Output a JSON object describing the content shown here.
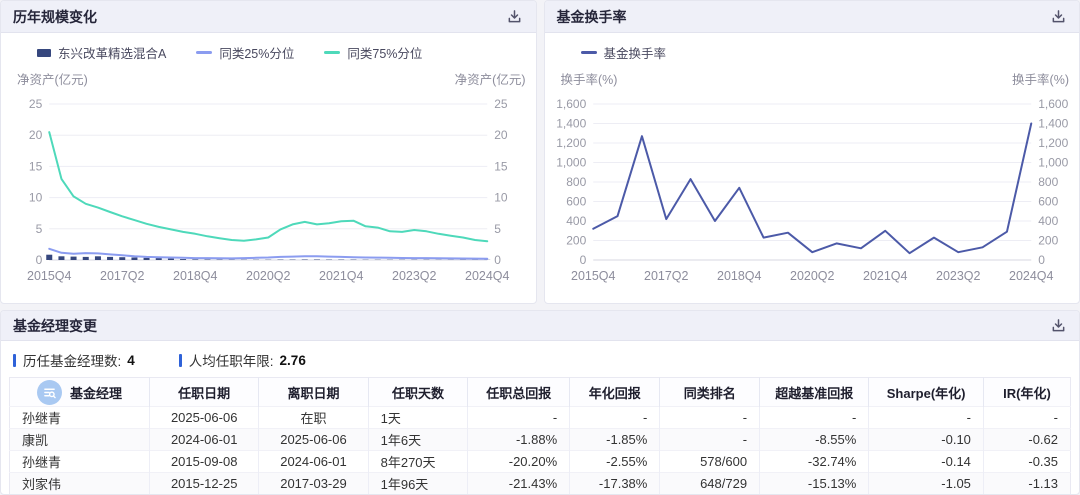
{
  "panels": [
    {
      "title": "历年规模变化"
    },
    {
      "title": "基金换手率"
    },
    {
      "title": "基金经理变更"
    }
  ],
  "icons": {
    "panel_action": "download-icon",
    "table_badge": "list-search-icon"
  },
  "colors": {
    "fund_bar": "#36477e",
    "pct25_line": "#8b9cf0",
    "pct75_line": "#4ed9ba",
    "turnover_line": "#4c5aa8",
    "stat_marker": "#2f62d8",
    "negative_green": "#2fa878",
    "header_band": "#eff0f8"
  },
  "chart_data": [
    {
      "id": "scale",
      "type": "bar",
      "title": "历年规模变化",
      "ylabel_left": "净资产(亿元)",
      "ylabel_right": "净资产(亿元)",
      "ylim": [
        0,
        25
      ],
      "yticks": [
        0,
        5,
        10,
        15,
        20,
        25
      ],
      "ytick_labels": [
        "0",
        "5",
        "10",
        "15",
        "20",
        "25"
      ],
      "grid": true,
      "legend_position": "top-left",
      "categories": [
        "2015Q4",
        "2016Q1",
        "2016Q2",
        "2016Q3",
        "2016Q4",
        "2017Q1",
        "2017Q2",
        "2017Q3",
        "2017Q4",
        "2018Q1",
        "2018Q2",
        "2018Q3",
        "2018Q4",
        "2019Q1",
        "2019Q2",
        "2019Q3",
        "2019Q4",
        "2020Q1",
        "2020Q2",
        "2020Q3",
        "2020Q4",
        "2021Q1",
        "2021Q2",
        "2021Q3",
        "2021Q4",
        "2022Q1",
        "2022Q2",
        "2022Q3",
        "2022Q4",
        "2023Q1",
        "2023Q2",
        "2023Q3",
        "2023Q4",
        "2024Q1",
        "2024Q2",
        "2024Q3",
        "2024Q4"
      ],
      "x_ticks": [
        {
          "i": 0,
          "label": "2015Q4"
        },
        {
          "i": 6,
          "label": "2017Q2"
        },
        {
          "i": 12,
          "label": "2018Q4"
        },
        {
          "i": 18,
          "label": "2020Q2"
        },
        {
          "i": 24,
          "label": "2021Q4"
        },
        {
          "i": 30,
          "label": "2023Q2"
        },
        {
          "i": 36,
          "label": "2024Q4"
        }
      ],
      "series": [
        {
          "name": "东兴改革精选混合A",
          "type": "bar",
          "color": "#36477e",
          "values": [
            0.85,
            0.6,
            0.55,
            0.5,
            0.6,
            0.5,
            0.45,
            0.4,
            0.35,
            0.3,
            0.22,
            0.15,
            0.1,
            0.08,
            0.06,
            0.05,
            0.05,
            0.05,
            0.05,
            0.06,
            0.07,
            0.08,
            0.08,
            0.07,
            0.06,
            0.06,
            0.05,
            0.05,
            0.05,
            0.05,
            0.05,
            0.05,
            0.04,
            0.04,
            0.04,
            0.03,
            0.03
          ]
        },
        {
          "name": "同类25%分位",
          "type": "line",
          "color": "#8b9cf0",
          "values": [
            1.8,
            1.15,
            1.0,
            1.1,
            1.05,
            0.9,
            0.75,
            0.6,
            0.5,
            0.45,
            0.4,
            0.35,
            0.3,
            0.3,
            0.28,
            0.25,
            0.3,
            0.35,
            0.4,
            0.5,
            0.55,
            0.6,
            0.6,
            0.55,
            0.5,
            0.45,
            0.4,
            0.38,
            0.35,
            0.32,
            0.3,
            0.3,
            0.28,
            0.26,
            0.24,
            0.22,
            0.2
          ]
        },
        {
          "name": "同类75%分位",
          "type": "line",
          "color": "#4ed9ba",
          "values": [
            20.5,
            13.0,
            10.2,
            9.0,
            8.4,
            7.7,
            7.0,
            6.4,
            5.8,
            5.3,
            4.9,
            4.5,
            4.2,
            3.8,
            3.5,
            3.2,
            3.1,
            3.3,
            3.6,
            4.9,
            5.7,
            6.1,
            5.7,
            5.9,
            6.2,
            6.3,
            5.4,
            5.2,
            4.6,
            4.5,
            4.8,
            4.6,
            4.2,
            3.9,
            3.6,
            3.2,
            3.0
          ]
        }
      ]
    },
    {
      "id": "turnover",
      "type": "line",
      "title": "基金换手率",
      "ylabel_left": "换手率(%)",
      "ylabel_right": "换手率(%)",
      "ylim": [
        0,
        1600
      ],
      "yticks": [
        0,
        200,
        400,
        600,
        800,
        1000,
        1200,
        1400,
        1600
      ],
      "ytick_labels": [
        "0",
        "200",
        "400",
        "600",
        "800",
        "1,000",
        "1,200",
        "1,400",
        "1,600"
      ],
      "grid": true,
      "legend_position": "top-left",
      "categories": [
        "2015Q4",
        "2016Q2",
        "2016Q4",
        "2017Q2",
        "2017Q4",
        "2018Q2",
        "2018Q4",
        "2019Q2",
        "2019Q4",
        "2020Q2",
        "2020Q4",
        "2021Q2",
        "2021Q4",
        "2022Q2",
        "2022Q4",
        "2023Q2",
        "2023Q4",
        "2024Q2",
        "2024Q4"
      ],
      "x_ticks": [
        {
          "i": 0,
          "label": "2015Q4"
        },
        {
          "i": 3,
          "label": "2017Q2"
        },
        {
          "i": 6,
          "label": "2018Q4"
        },
        {
          "i": 9,
          "label": "2020Q2"
        },
        {
          "i": 12,
          "label": "2021Q4"
        },
        {
          "i": 15,
          "label": "2023Q2"
        },
        {
          "i": 18,
          "label": "2024Q4"
        }
      ],
      "series": [
        {
          "name": "基金换手率",
          "type": "line",
          "color": "#4c5aa8",
          "values": [
            320,
            450,
            1270,
            420,
            830,
            400,
            740,
            230,
            280,
            80,
            170,
            120,
            300,
            70,
            230,
            80,
            130,
            290,
            1400
          ]
        }
      ]
    }
  ],
  "manager": {
    "stats": [
      {
        "label": "历任基金经理数:",
        "value": "4"
      },
      {
        "label": "人均任职年限:",
        "value": "2.76"
      }
    ],
    "table": {
      "columns": [
        {
          "label": "基金经理",
          "align": "left",
          "w": "13.2%"
        },
        {
          "label": "任职日期",
          "align": "center",
          "w": "10.3%"
        },
        {
          "label": "离职日期",
          "align": "center",
          "w": "10.3%"
        },
        {
          "label": "任职天数",
          "align": "left",
          "w": "9.4%"
        },
        {
          "label": "任职总回报",
          "align": "right",
          "w": "9.6%"
        },
        {
          "label": "年化回报",
          "align": "right",
          "w": "8.5%"
        },
        {
          "label": "同类排名",
          "align": "right",
          "w": "9.4%"
        },
        {
          "label": "超越基准回报",
          "align": "right",
          "w": "10.3%"
        },
        {
          "label": "Sharpe(年化)",
          "align": "right",
          "w": "10.8%"
        },
        {
          "label": "IR(年化)",
          "align": "right",
          "w": "8.2%"
        }
      ],
      "rows": [
        [
          {
            "t": "孙继青"
          },
          {
            "t": "2025-06-06"
          },
          {
            "t": "在职"
          },
          {
            "t": "1天"
          },
          {
            "t": "-",
            "c": "dash"
          },
          {
            "t": "-",
            "c": "dash"
          },
          {
            "t": "-",
            "c": "dash"
          },
          {
            "t": "-",
            "c": "dash"
          },
          {
            "t": "-",
            "c": "dash"
          },
          {
            "t": "-",
            "c": "dash"
          }
        ],
        [
          {
            "t": "康凯"
          },
          {
            "t": "2024-06-01"
          },
          {
            "t": "2025-06-06"
          },
          {
            "t": "1年6天"
          },
          {
            "t": "-1.88%",
            "c": "green"
          },
          {
            "t": "-1.85%",
            "c": "green"
          },
          {
            "t": "-",
            "c": "dash"
          },
          {
            "t": "-8.55%",
            "c": "green"
          },
          {
            "t": "-0.10"
          },
          {
            "t": "-0.62"
          }
        ],
        [
          {
            "t": "孙继青"
          },
          {
            "t": "2015-09-08"
          },
          {
            "t": "2024-06-01"
          },
          {
            "t": "8年270天"
          },
          {
            "t": "-20.20%",
            "c": "green"
          },
          {
            "t": "-2.55%",
            "c": "green"
          },
          {
            "t": "578/600"
          },
          {
            "t": "-32.74%",
            "c": "green"
          },
          {
            "t": "-0.14"
          },
          {
            "t": "-0.35"
          }
        ],
        [
          {
            "t": "刘家伟"
          },
          {
            "t": "2015-12-25"
          },
          {
            "t": "2017-03-29"
          },
          {
            "t": "1年96天"
          },
          {
            "t": "-21.43%",
            "c": "green"
          },
          {
            "t": "-17.38%",
            "c": "green"
          },
          {
            "t": "648/729"
          },
          {
            "t": "-15.13%",
            "c": "green"
          },
          {
            "t": "-1.05"
          },
          {
            "t": "-1.13"
          }
        ]
      ]
    }
  }
}
